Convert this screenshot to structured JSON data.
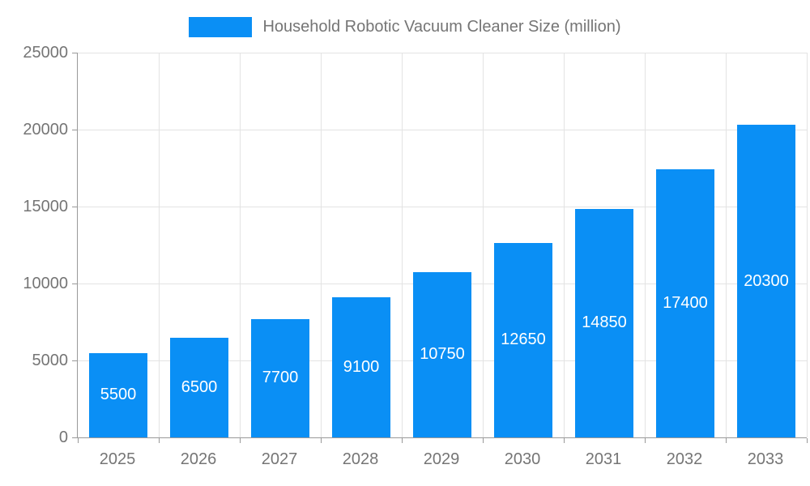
{
  "legend": {
    "label": "Household Robotic Vacuum Cleaner Size (million)",
    "swatch_color": "#0a8ff5"
  },
  "chart_data": {
    "type": "bar",
    "title": "Household Robotic Vacuum Cleaner Size (million)",
    "categories": [
      "2025",
      "2026",
      "2027",
      "2028",
      "2029",
      "2030",
      "2031",
      "2032",
      "2033"
    ],
    "values": [
      5500,
      6500,
      7700,
      9100,
      10750,
      12650,
      14850,
      17400,
      20300
    ],
    "series": [
      {
        "name": "Household Robotic Vacuum Cleaner Size (million)",
        "values": [
          5500,
          6500,
          7700,
          9100,
          10750,
          12650,
          14850,
          17400,
          20300
        ]
      }
    ],
    "xlabel": "",
    "ylabel": "",
    "ylim": [
      0,
      25000
    ],
    "yticks": [
      0,
      5000,
      10000,
      15000,
      20000,
      25000
    ],
    "grid": true,
    "legend_position": "top-center",
    "bar_color": "#0a8ff5",
    "bar_label_color": "#ffffff",
    "axis_text_color": "#757575",
    "grid_color": "#e3e3e3",
    "axis_line_color": "#999999"
  }
}
